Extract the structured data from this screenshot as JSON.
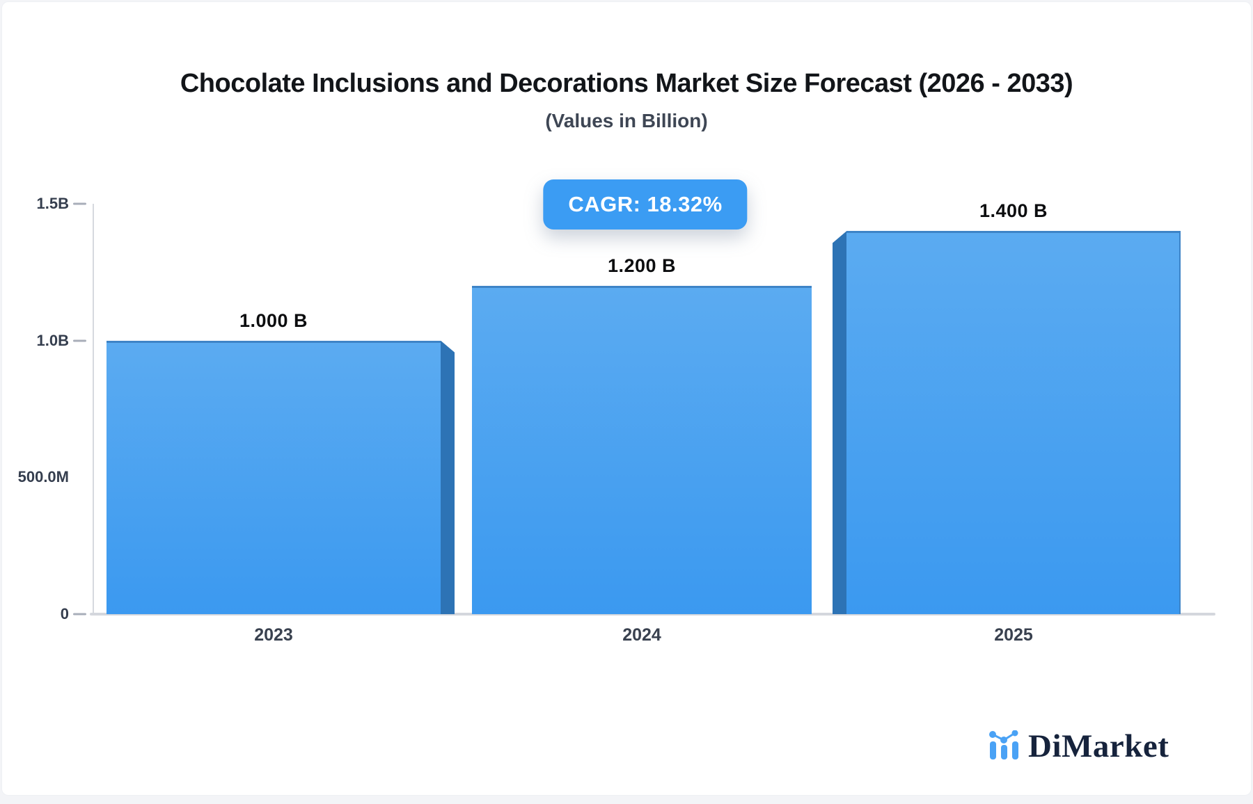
{
  "title": "Chocolate Inclusions and Decorations Market Size Forecast (2026 - 2033)",
  "subtitle": "(Values in Billion)",
  "badge": {
    "label": "CAGR: 18.32%"
  },
  "watermark": {
    "brand": "DiMarket"
  },
  "chart_data": {
    "type": "bar",
    "categories": [
      "2023",
      "2024",
      "2025"
    ],
    "values": [
      1.0,
      1.2,
      1.4
    ],
    "value_labels": [
      "1.000 B",
      "1.200 B",
      "1.400 B"
    ],
    "units": "Billion",
    "title": "Chocolate Inclusions and Decorations Market Size Forecast (2026 - 2033)",
    "subtitle": "(Values in Billion)",
    "cagr_percent": 18.32,
    "ylim": [
      0,
      1.5
    ],
    "yticks": [
      {
        "label": "1.5B",
        "value": 1.5,
        "dash": true
      },
      {
        "label": "1.0B",
        "value": 1.0,
        "dash": true
      },
      {
        "label": "500.0M",
        "value": 0.5,
        "dash": false
      },
      {
        "label": "0",
        "value": 0,
        "dash": true
      }
    ],
    "grid": false,
    "legend": "none",
    "colors": {
      "bar_gradient_top": "#5babf1",
      "bar_gradient_bottom": "#3b99f0",
      "bar_side_3d": "#2d73b5",
      "bar_top_border": "#3e84c7",
      "badge_background": "#3b9cf3",
      "axis_line": "#d4d7dd",
      "tick_text": "#353e4e",
      "label_text": "#0c0d0f",
      "logo_navy": "#16233c",
      "logo_blue": "#4aa2f5"
    }
  }
}
